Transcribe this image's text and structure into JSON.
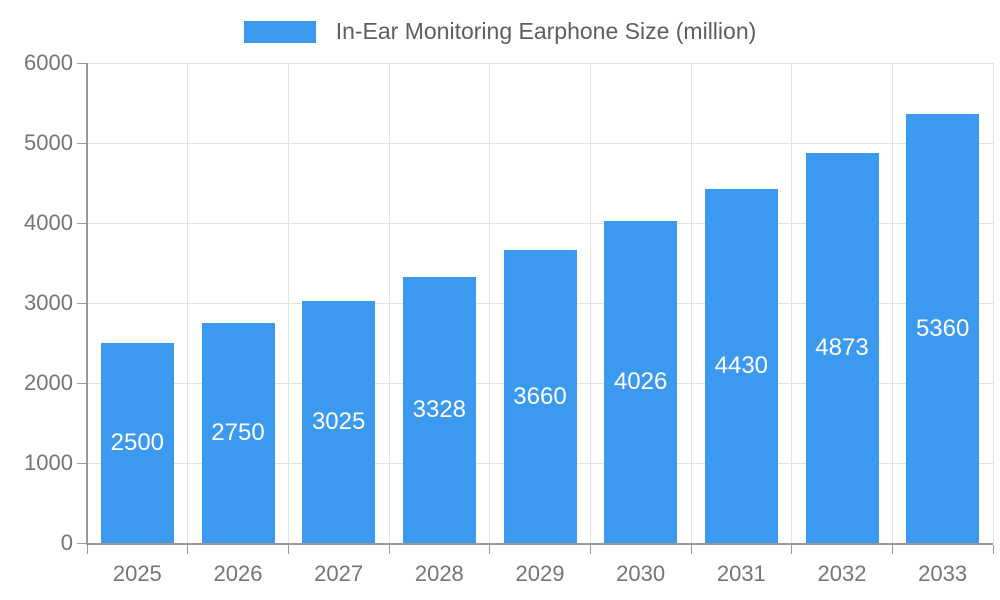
{
  "chart_data": {
    "type": "bar",
    "title": "In-Ear Monitoring Earphone Size (million)",
    "categories": [
      "2025",
      "2026",
      "2027",
      "2028",
      "2029",
      "2030",
      "2031",
      "2032",
      "2033"
    ],
    "values": [
      2500,
      2750,
      3025,
      3328,
      3660,
      4026,
      4430,
      4873,
      5360
    ],
    "series": [
      {
        "name": "In-Ear Monitoring Earphone Size (million)",
        "values": [
          2500,
          2750,
          3025,
          3328,
          3660,
          4026,
          4430,
          4873,
          5360
        ]
      }
    ],
    "xlabel": "",
    "ylabel": "",
    "ylim": [
      0,
      6000
    ],
    "yticks": [
      0,
      1000,
      2000,
      3000,
      4000,
      5000,
      6000
    ],
    "grid": true,
    "legend_position": "top",
    "data_labels": "inside-center"
  },
  "legend": {
    "label": "In-Ear Monitoring Earphone Size (million)",
    "swatch_color": "#3B99F0"
  },
  "colors": {
    "bar": "#3B99F0",
    "bar_label": "#ffffff",
    "gridline": "#E2E2E2",
    "axis": "#999999",
    "tick_label": "#757575",
    "legend_text": "#5e5e5e",
    "background": "#ffffff"
  }
}
